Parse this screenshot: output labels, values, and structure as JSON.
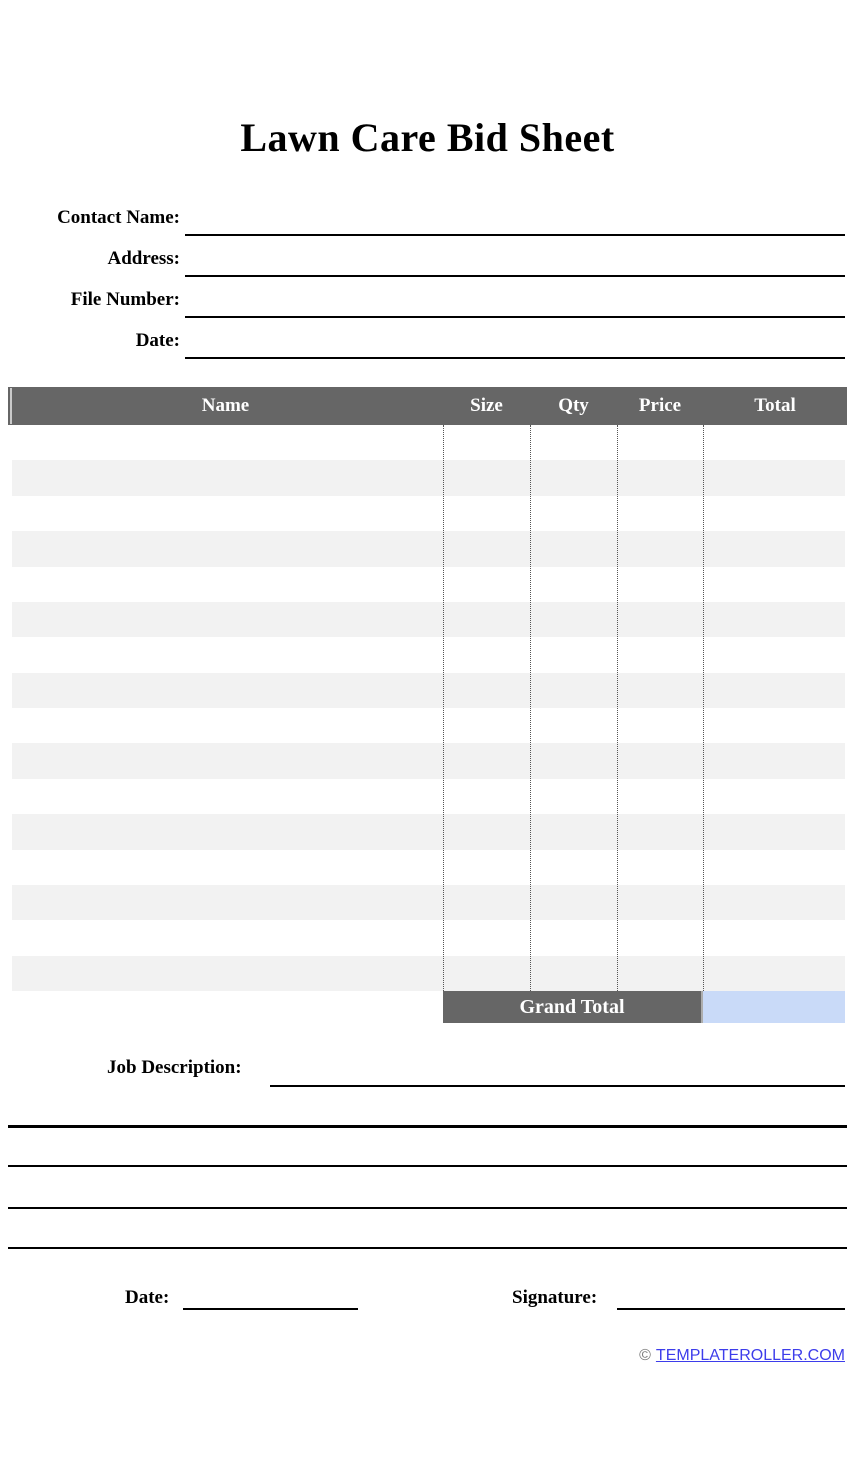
{
  "page": {
    "title": "Lawn Care Bid Sheet"
  },
  "contact_fields": [
    {
      "id": "contact-name",
      "label": "Contact Name:",
      "value": ""
    },
    {
      "id": "address",
      "label": "Address:",
      "value": ""
    },
    {
      "id": "file-number",
      "label": "File Number:",
      "value": ""
    },
    {
      "id": "date",
      "label": "Date:",
      "value": ""
    }
  ],
  "table": {
    "columns": [
      "Name",
      "Size",
      "Qty",
      "Price",
      "Total"
    ],
    "rows": [
      [
        "",
        "",
        "",
        "",
        ""
      ],
      [
        "",
        "",
        "",
        "",
        ""
      ],
      [
        "",
        "",
        "",
        "",
        ""
      ],
      [
        "",
        "",
        "",
        "",
        ""
      ],
      [
        "",
        "",
        "",
        "",
        ""
      ],
      [
        "",
        "",
        "",
        "",
        ""
      ],
      [
        "",
        "",
        "",
        "",
        ""
      ],
      [
        "",
        "",
        "",
        "",
        ""
      ],
      [
        "",
        "",
        "",
        "",
        ""
      ],
      [
        "",
        "",
        "",
        "",
        ""
      ],
      [
        "",
        "",
        "",
        "",
        ""
      ],
      [
        "",
        "",
        "",
        "",
        ""
      ],
      [
        "",
        "",
        "",
        "",
        ""
      ],
      [
        "",
        "",
        "",
        "",
        ""
      ],
      [
        "",
        "",
        "",
        "",
        ""
      ],
      [
        "",
        "",
        "",
        "",
        ""
      ]
    ],
    "grand_total": {
      "label": "Grand Total",
      "value": ""
    }
  },
  "job_description": {
    "label": "Job Description:",
    "value": "",
    "extra_line_count": 4
  },
  "signoff": {
    "date_label": "Date:",
    "date_value": "",
    "signature_label": "Signature:",
    "signature_value": ""
  },
  "footer": {
    "copyright_symbol": "©",
    "link_text": "TEMPLATEROLLER.COM"
  },
  "colors": {
    "table_header_bg": "#666666",
    "row_stripe": "#f2f2f2",
    "grand_total_cell_bg": "#c9daf8",
    "footer_link": "#3d3deb"
  }
}
